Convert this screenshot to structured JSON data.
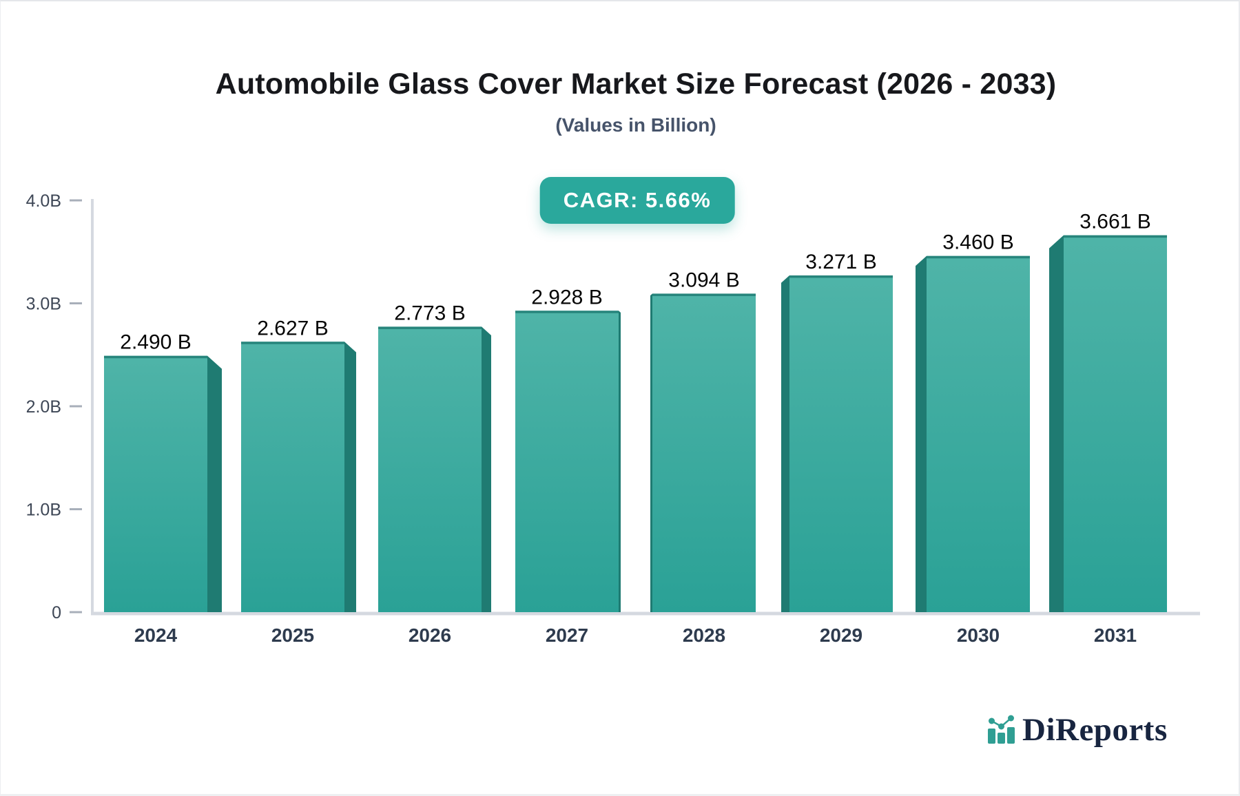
{
  "page": {
    "cagr_badge": "CAGR: 5.66%"
  },
  "brand": {
    "name": "DiReports"
  },
  "chart_data": {
    "type": "bar",
    "title": "Automobile Glass Cover Market Size Forecast (2026 - 2033)",
    "subtitle": "(Values in Billion)",
    "unit": "Billion",
    "cagr": "5.66%",
    "categories": [
      "2024",
      "2025",
      "2026",
      "2027",
      "2028",
      "2029",
      "2030",
      "2031"
    ],
    "values": [
      2.49,
      2.627,
      2.773,
      2.928,
      3.094,
      3.271,
      3.46,
      3.661
    ],
    "value_labels": [
      "2.490 B",
      "2.627 B",
      "2.773 B",
      "2.928 B",
      "3.094 B",
      "3.271 B",
      "3.460 B",
      "3.661 B"
    ],
    "ylim": [
      0,
      4
    ],
    "yticks": [
      {
        "value": 4,
        "label": "4.0B"
      },
      {
        "value": 3,
        "label": "3.0B"
      },
      {
        "value": 2,
        "label": "2.0B"
      },
      {
        "value": 1,
        "label": "1.0B"
      },
      {
        "value": 0,
        "label": "0"
      }
    ],
    "grid": false,
    "legend": "none",
    "bar_style": "3d-extruded-toward-center",
    "colors": {
      "bar_face_top": "#4fb4a8",
      "bar_face_bottom": "#2aa196",
      "bar_top_edge": "#27857c",
      "bar_side": "#1f7b72",
      "badge_bg": "#2aa89c",
      "axis_line": "#d5d9e0",
      "tick_dash": "#a8afba",
      "tick_text": "#3e4756",
      "year_text": "#2e3b4e",
      "value_text": "#050505",
      "title_text": "#17181c",
      "subtitle_text": "#46536a",
      "brand_text": "#182540",
      "brand_icon": "#2f9e93"
    }
  }
}
